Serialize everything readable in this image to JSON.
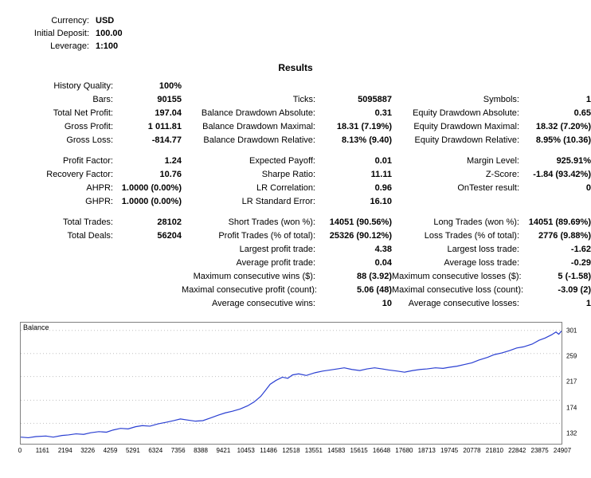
{
  "colors": {
    "line": "#2a3fd2",
    "grid": "#c0c0c0",
    "plot_border": "#808080"
  },
  "header": {
    "items": [
      {
        "label": "Currency:",
        "value": "USD"
      },
      {
        "label": "Initial Deposit:",
        "value": "100.00"
      },
      {
        "label": "Leverage:",
        "value": "1:100"
      }
    ]
  },
  "results": {
    "title": "Results",
    "rows": [
      {
        "cells": [
          {
            "label": "History Quality:",
            "value": "100%"
          },
          null,
          null
        ]
      },
      {
        "cells": [
          {
            "label": "Bars:",
            "value": "90155"
          },
          {
            "label": "Ticks:",
            "value": "5095887"
          },
          {
            "label": "Symbols:",
            "value": "1"
          }
        ]
      },
      {
        "cells": [
          {
            "label": "Total Net Profit:",
            "value": "197.04"
          },
          {
            "label": "Balance Drawdown Absolute:",
            "value": "0.31"
          },
          {
            "label": "Equity Drawdown Absolute:",
            "value": "0.65"
          }
        ]
      },
      {
        "cells": [
          {
            "label": "Gross Profit:",
            "value": "1 011.81"
          },
          {
            "label": "Balance Drawdown Maximal:",
            "value": "18.31 (7.19%)"
          },
          {
            "label": "Equity Drawdown Maximal:",
            "value": "18.32 (7.20%)"
          }
        ]
      },
      {
        "cells": [
          {
            "label": "Gross Loss:",
            "value": "-814.77"
          },
          {
            "label": "Balance Drawdown Relative:",
            "value": "8.13% (9.40)"
          },
          {
            "label": "Equity Drawdown Relative:",
            "value": "8.95% (10.36)"
          }
        ]
      },
      {
        "spacer": true
      },
      {
        "cells": [
          {
            "label": "Profit Factor:",
            "value": "1.24"
          },
          {
            "label": "Expected Payoff:",
            "value": "0.01"
          },
          {
            "label": "Margin Level:",
            "value": "925.91%"
          }
        ]
      },
      {
        "cells": [
          {
            "label": "Recovery Factor:",
            "value": "10.76"
          },
          {
            "label": "Sharpe Ratio:",
            "value": "11.11"
          },
          {
            "label": "Z-Score:",
            "value": "-1.84 (93.42%)"
          }
        ]
      },
      {
        "cells": [
          {
            "label": "AHPR:",
            "value": "1.0000 (0.00%)"
          },
          {
            "label": "LR Correlation:",
            "value": "0.96"
          },
          {
            "label": "OnTester result:",
            "value": "0"
          }
        ]
      },
      {
        "cells": [
          {
            "label": "GHPR:",
            "value": "1.0000 (0.00%)"
          },
          {
            "label": "LR Standard Error:",
            "value": "16.10"
          },
          null
        ]
      },
      {
        "spacer": true
      },
      {
        "cells": [
          {
            "label": "Total Trades:",
            "value": "28102"
          },
          {
            "label": "Short Trades (won %):",
            "value": "14051 (90.56%)"
          },
          {
            "label": "Long Trades (won %):",
            "value": "14051 (89.69%)"
          }
        ]
      },
      {
        "cells": [
          {
            "label": "Total Deals:",
            "value": "56204"
          },
          {
            "label": "Profit Trades (% of total):",
            "value": "25326 (90.12%)"
          },
          {
            "label": "Loss Trades (% of total):",
            "value": "2776 (9.88%)"
          }
        ]
      },
      {
        "cells": [
          null,
          {
            "label": "Largest profit trade:",
            "value": "4.38"
          },
          {
            "label": "Largest loss trade:",
            "value": "-1.62"
          }
        ]
      },
      {
        "cells": [
          null,
          {
            "label": "Average profit trade:",
            "value": "0.04"
          },
          {
            "label": "Average loss trade:",
            "value": "-0.29"
          }
        ]
      },
      {
        "cells": [
          null,
          {
            "label": "Maximum consecutive wins ($):",
            "value": "88 (3.92)"
          },
          {
            "label": "Maximum consecutive losses ($):",
            "value": "5 (-1.58)"
          }
        ]
      },
      {
        "cells": [
          null,
          {
            "label": "Maximal consecutive profit (count):",
            "value": "5.06 (48)"
          },
          {
            "label": "Maximal consecutive loss (count):",
            "value": "-3.09 (2)"
          }
        ]
      },
      {
        "cells": [
          null,
          {
            "label": "Average consecutive wins:",
            "value": "10"
          },
          {
            "label": "Average consecutive losses:",
            "value": "1"
          }
        ]
      }
    ]
  },
  "chart_data": {
    "type": "line",
    "title": "Balance",
    "xlabel": "",
    "ylabel": "",
    "legend": "none",
    "grid": "horizontal-dotted",
    "xlim": [
      0,
      24907
    ],
    "ylim": [
      95,
      315
    ],
    "x_ticks": [
      "0",
      "1161",
      "2194",
      "3226",
      "4259",
      "5291",
      "6324",
      "7356",
      "8388",
      "9421",
      "10453",
      "11486",
      "12518",
      "13551",
      "14583",
      "15615",
      "16648",
      "17680",
      "18713",
      "19745",
      "20778",
      "21810",
      "22842",
      "23875",
      "24907"
    ],
    "y_ticks": [
      301,
      259,
      217,
      174,
      132
    ],
    "series": [
      {
        "name": "Balance",
        "color": "#2a3fd2",
        "points": [
          [
            0,
            107
          ],
          [
            350,
            106
          ],
          [
            700,
            108
          ],
          [
            1161,
            109
          ],
          [
            1500,
            107
          ],
          [
            1900,
            110
          ],
          [
            2194,
            111
          ],
          [
            2550,
            113
          ],
          [
            2900,
            112
          ],
          [
            3226,
            115
          ],
          [
            3600,
            117
          ],
          [
            3950,
            116
          ],
          [
            4259,
            120
          ],
          [
            4600,
            123
          ],
          [
            4950,
            122
          ],
          [
            5291,
            126
          ],
          [
            5600,
            128
          ],
          [
            5950,
            127
          ],
          [
            6324,
            131
          ],
          [
            6700,
            134
          ],
          [
            7050,
            137
          ],
          [
            7356,
            140
          ],
          [
            7700,
            138
          ],
          [
            8050,
            136
          ],
          [
            8388,
            137
          ],
          [
            8750,
            142
          ],
          [
            9100,
            147
          ],
          [
            9421,
            151
          ],
          [
            9750,
            154
          ],
          [
            10100,
            158
          ],
          [
            10453,
            164
          ],
          [
            10750,
            171
          ],
          [
            11050,
            181
          ],
          [
            11250,
            191
          ],
          [
            11486,
            203
          ],
          [
            11750,
            210
          ],
          [
            12050,
            216
          ],
          [
            12300,
            214
          ],
          [
            12518,
            220
          ],
          [
            12800,
            222
          ],
          [
            13150,
            219
          ],
          [
            13551,
            224
          ],
          [
            13900,
            227
          ],
          [
            14250,
            229
          ],
          [
            14583,
            231
          ],
          [
            14900,
            233
          ],
          [
            15250,
            230
          ],
          [
            15615,
            228
          ],
          [
            15950,
            231
          ],
          [
            16300,
            233
          ],
          [
            16648,
            231
          ],
          [
            16950,
            229
          ],
          [
            17350,
            227
          ],
          [
            17680,
            225
          ],
          [
            18050,
            228
          ],
          [
            18400,
            230
          ],
          [
            18713,
            231
          ],
          [
            19100,
            233
          ],
          [
            19450,
            232
          ],
          [
            19745,
            234
          ],
          [
            20100,
            236
          ],
          [
            20450,
            239
          ],
          [
            20778,
            242
          ],
          [
            21100,
            247
          ],
          [
            21500,
            252
          ],
          [
            21810,
            257
          ],
          [
            22150,
            260
          ],
          [
            22500,
            264
          ],
          [
            22842,
            269
          ],
          [
            23150,
            271
          ],
          [
            23550,
            276
          ],
          [
            23875,
            283
          ],
          [
            24150,
            287
          ],
          [
            24450,
            293
          ],
          [
            24650,
            298
          ],
          [
            24780,
            294
          ],
          [
            24907,
            300
          ]
        ]
      }
    ]
  }
}
